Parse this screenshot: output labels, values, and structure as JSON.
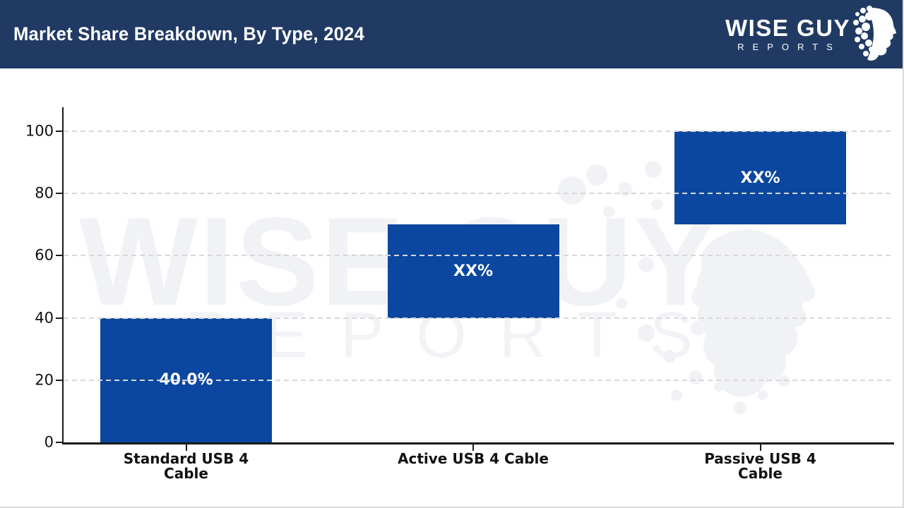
{
  "header": {
    "title": "Market Share Breakdown, By Type, 2024",
    "brand": {
      "name": "WISE GUY",
      "sub": "REPORTS"
    }
  },
  "watermark": {
    "line1": "WISE GUY",
    "line2": "REPORTS"
  },
  "chart_data": {
    "type": "bar",
    "subtype": "waterfall",
    "title": "Market Share Breakdown, By Type, 2024",
    "categories": [
      "Standard USB 4 Cable",
      "Active USB 4 Cable",
      "Passive USB 4 Cable"
    ],
    "category_label_lines": [
      [
        "Standard USB 4",
        "Cable"
      ],
      [
        "Active USB 4 Cable"
      ],
      [
        "Passive USB 4",
        "Cable"
      ]
    ],
    "segments": [
      {
        "category": "Standard USB 4 Cable",
        "start": 0,
        "end": 40,
        "value": 40,
        "label": "40.0%"
      },
      {
        "category": "Active USB 4 Cable",
        "start": 40,
        "end": 70,
        "value": 30,
        "label": "XX%"
      },
      {
        "category": "Passive USB 4 Cable",
        "start": 70,
        "end": 100,
        "value": 30,
        "label": "XX%"
      }
    ],
    "xlabel": "",
    "ylabel": "",
    "ylim": [
      0,
      100
    ],
    "yticks": [
      0,
      20,
      40,
      60,
      80,
      100
    ],
    "grid": {
      "horizontal": true,
      "style": "dashed",
      "on_top_of_bars": true
    },
    "legend": "none"
  },
  "colors": {
    "header_bg": "#203a64",
    "bar": "#0b47a0",
    "bar_label": "#ffffff",
    "grid": "#d8d8d8",
    "axis": "#1a1a1a",
    "watermark": "#f1f2f5"
  }
}
